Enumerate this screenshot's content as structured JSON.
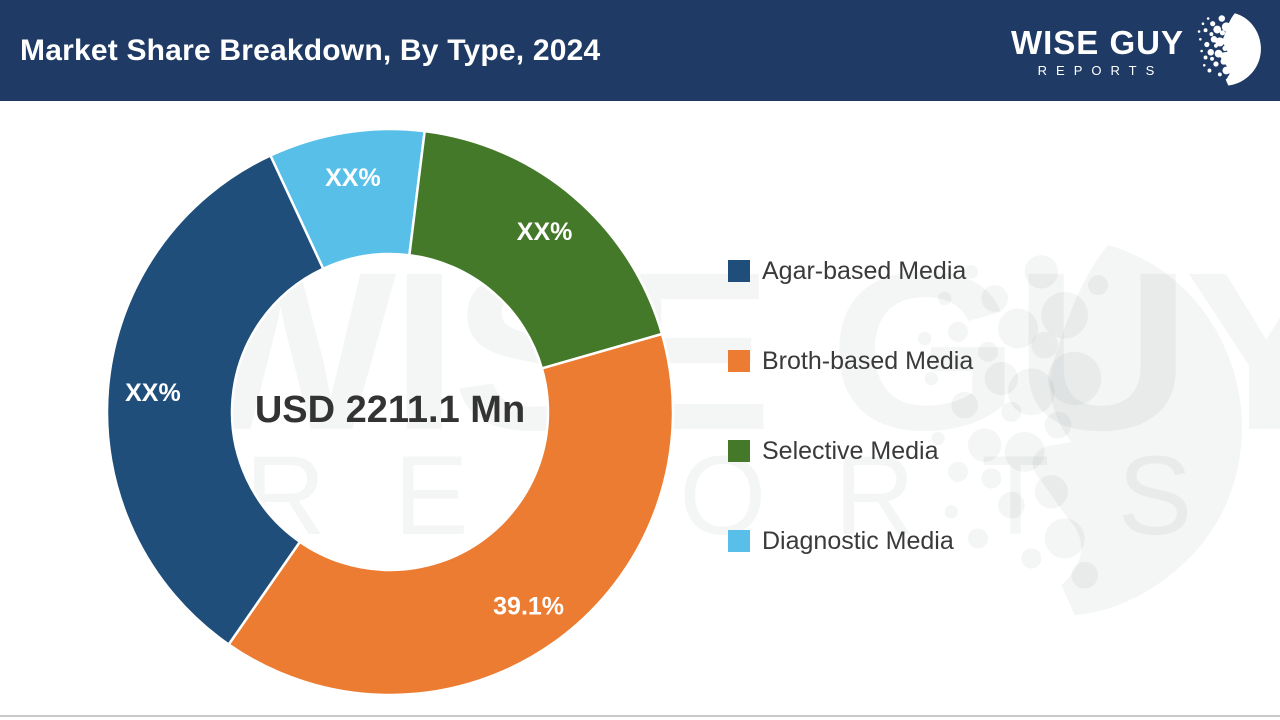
{
  "header": {
    "title": "Market Share Breakdown, By Type, 2024",
    "bg_color": "#1f3a64",
    "logo": {
      "line1": "WISE GUY",
      "line2": "REPORTS"
    }
  },
  "chart_data": {
    "type": "pie",
    "subtype": "donut",
    "title": "Market Share Breakdown, By Type, 2024",
    "center_label": "USD 2211.1 Mn",
    "start_angle_deg": -25,
    "legend_position": "right",
    "segments": [
      {
        "label": "Diagnostic Media",
        "value_pct": 8.9,
        "display": "XX%",
        "color": "#57bfe8"
      },
      {
        "label": "Selective Media",
        "value_pct": 18.6,
        "display": "XX%",
        "color": "#45792a"
      },
      {
        "label": "Broth-based Media",
        "value_pct": 39.1,
        "display": "39.1%",
        "color": "#ec7c31"
      },
      {
        "label": "Agar-based Media",
        "value_pct": 33.4,
        "display": "XX%",
        "color": "#1f4e7a"
      }
    ]
  },
  "legend": {
    "items": [
      {
        "label": "Agar-based Media",
        "color": "#1f4e7a"
      },
      {
        "label": "Broth-based Media",
        "color": "#ec7c31"
      },
      {
        "label": "Selective Media",
        "color": "#45792a"
      },
      {
        "label": "Diagnostic Media",
        "color": "#57bfe8"
      }
    ]
  },
  "watermark": {
    "line1": "WISE GUY",
    "line2": "REPORTS"
  }
}
